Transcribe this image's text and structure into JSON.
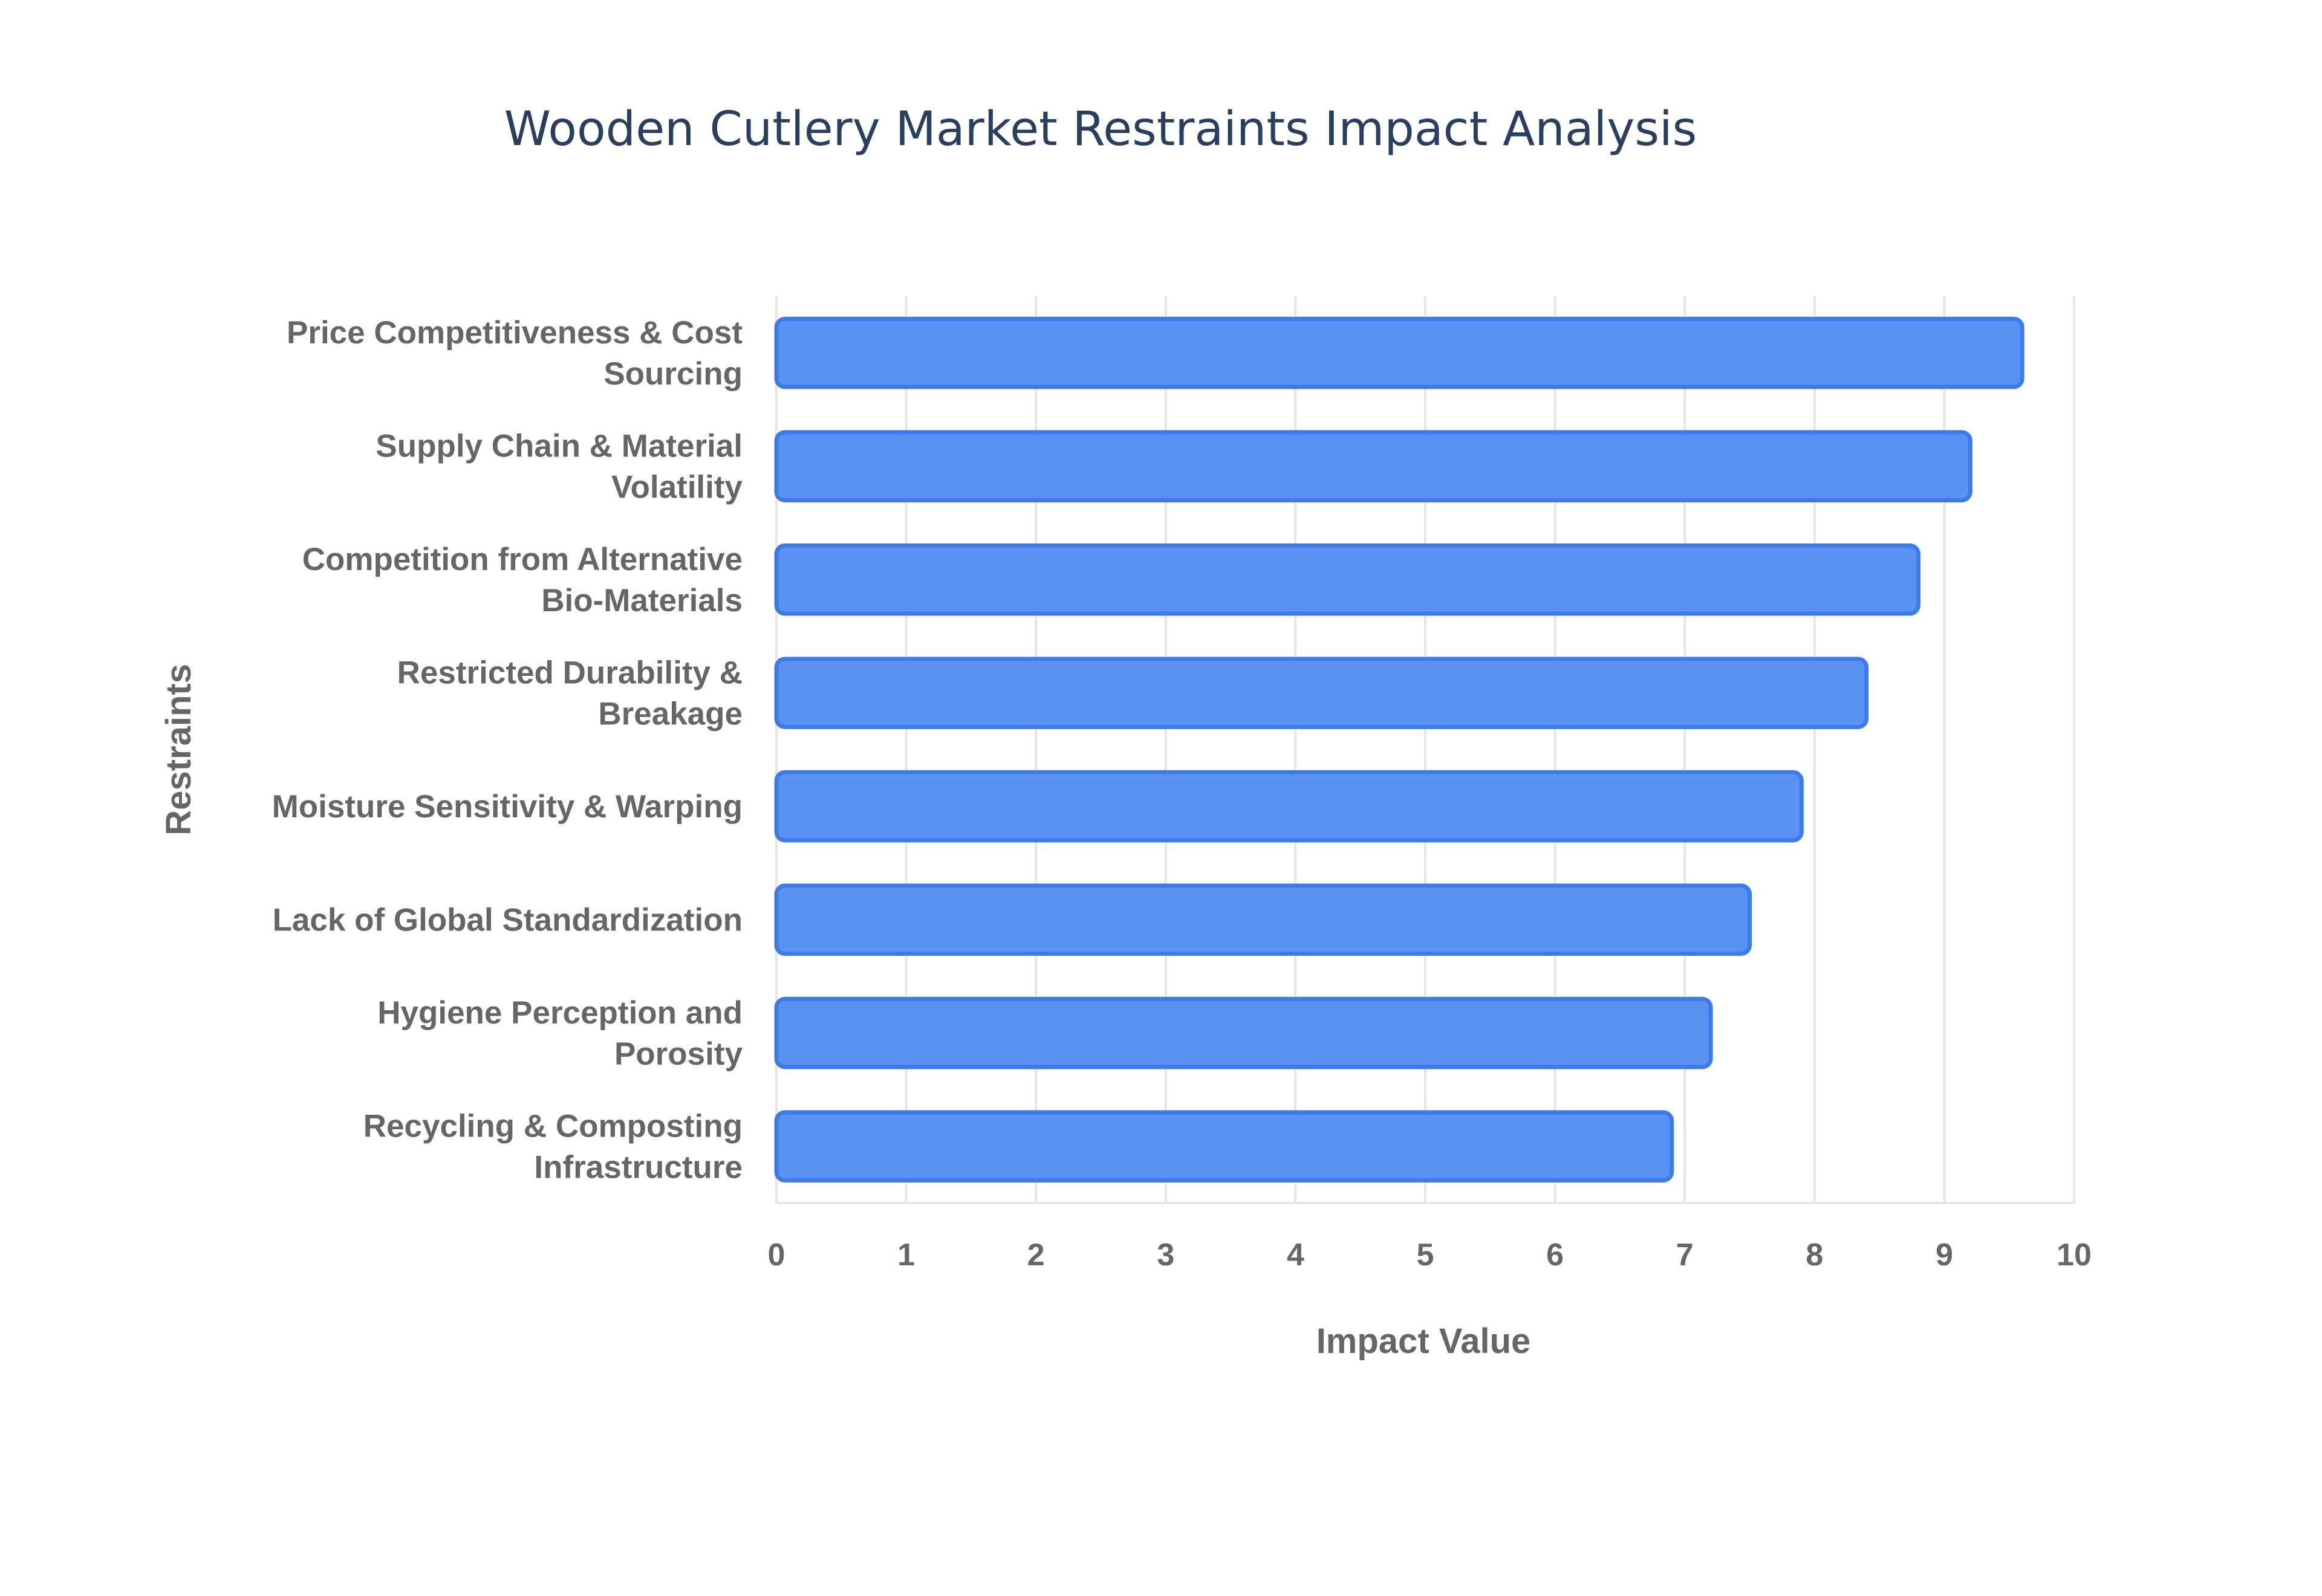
{
  "chart_data": {
    "type": "bar",
    "orientation": "horizontal",
    "title": "Wooden Cutlery Market Restraints Impact Analysis",
    "xlabel": "Impact Value",
    "ylabel": "Restraints",
    "xlim": [
      0,
      10
    ],
    "x_ticks": [
      0,
      1,
      2,
      3,
      4,
      5,
      6,
      7,
      8,
      9,
      10
    ],
    "grid": true,
    "legend": "none",
    "categories": [
      [
        "Price Competitiveness & Cost",
        "Sourcing"
      ],
      [
        "Supply Chain & Material",
        "Volatility"
      ],
      [
        "Competition from Alternative",
        "Bio-Materials"
      ],
      [
        "Restricted Durability &",
        "Breakage"
      ],
      [
        "Moisture Sensitivity & Warping"
      ],
      [
        "Lack of Global Standardization"
      ],
      [
        "Hygiene Perception and",
        "Porosity"
      ],
      [
        "Recycling & Composting",
        "Infrastructure"
      ]
    ],
    "values": [
      9.6,
      9.2,
      8.8,
      8.4,
      7.9,
      7.5,
      7.2,
      6.9
    ],
    "colors": {
      "bar_fill": "#5b93f5",
      "bar_border": "#3f7be6",
      "title": "#2a3f5f",
      "text": "#666666",
      "grid": "#e6e6e6"
    }
  }
}
